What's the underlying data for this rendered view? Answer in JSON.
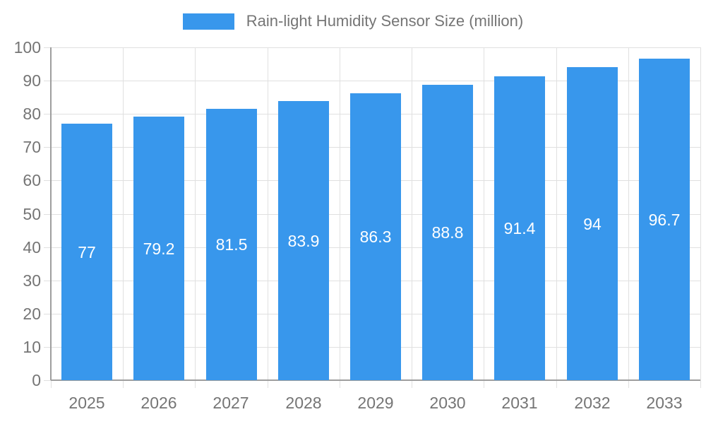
{
  "chart_data": {
    "type": "bar",
    "title": "Rain-light Humidity Sensor Size (million)",
    "categories": [
      "2025",
      "2026",
      "2027",
      "2028",
      "2029",
      "2030",
      "2031",
      "2032",
      "2033"
    ],
    "values": [
      77,
      79.2,
      81.5,
      83.9,
      86.3,
      88.8,
      91.4,
      94,
      96.7
    ],
    "value_labels": [
      "77",
      "79.2",
      "81.5",
      "83.9",
      "86.3",
      "88.8",
      "91.4",
      "94",
      "96.7"
    ],
    "xlabel": "",
    "ylabel": "",
    "ylim": [
      0,
      100
    ],
    "ytick_step": 10,
    "yticks": [
      "0",
      "10",
      "20",
      "30",
      "40",
      "50",
      "60",
      "70",
      "80",
      "90",
      "100"
    ],
    "grid": true,
    "legend_position": "top",
    "bar_color": "#3897EC",
    "value_label_color": "#ffffff",
    "axis_color": "#9e9e9e",
    "grid_color": "#e0e0e0",
    "text_color": "#757575"
  }
}
